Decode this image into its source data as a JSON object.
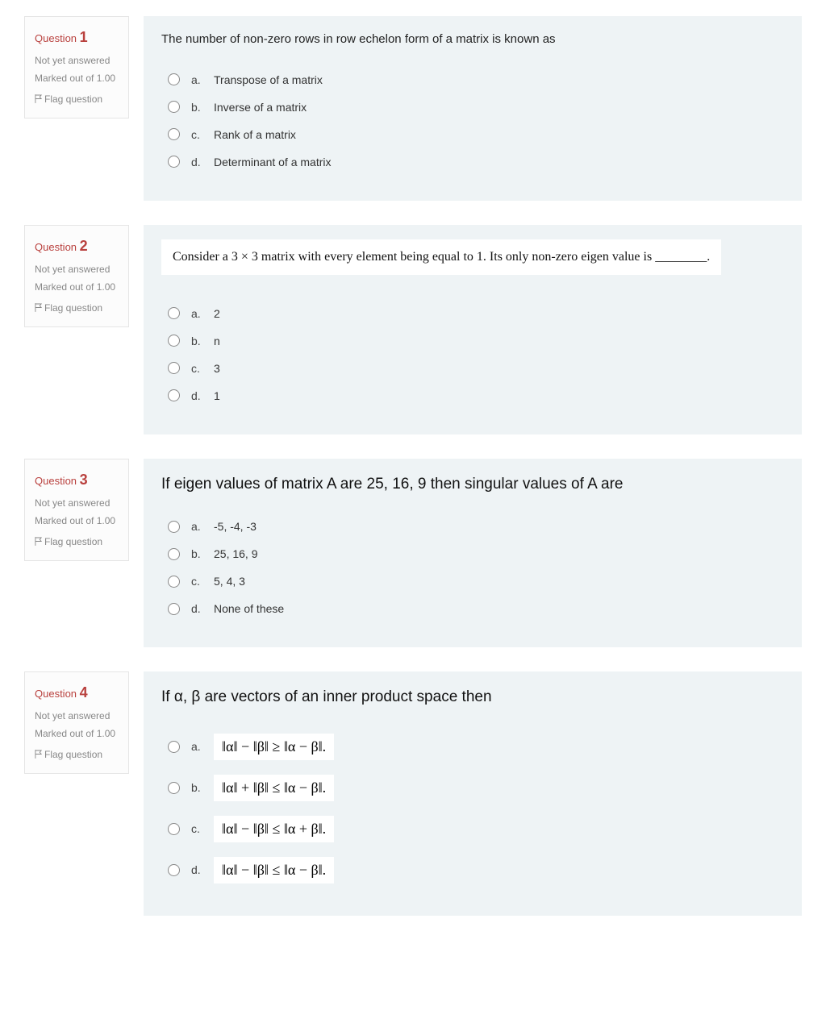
{
  "questions": [
    {
      "label": "Question",
      "number": "1",
      "status": "Not yet answered",
      "marks": "Marked out of 1.00",
      "flag": "Flag question",
      "text": "The number of non-zero rows in row echelon form of a matrix is known as",
      "text_class": "",
      "options": [
        {
          "letter": "a.",
          "text": "Transpose of a matrix",
          "formula": false
        },
        {
          "letter": "b.",
          "text": "Inverse of a matrix",
          "formula": false
        },
        {
          "letter": "c.",
          "text": "Rank of a matrix",
          "formula": false
        },
        {
          "letter": "d.",
          "text": "Determinant of a matrix",
          "formula": false
        }
      ]
    },
    {
      "label": "Question",
      "number": "2",
      "status": "Not yet answered",
      "marks": "Marked out of 1.00",
      "flag": "Flag question",
      "text": "Consider a 3 × 3 matrix with every element being equal to 1. Its only non-zero eigen value is ________.",
      "text_class": "white-strip",
      "options": [
        {
          "letter": "a.",
          "text": "2",
          "formula": false
        },
        {
          "letter": "b.",
          "text": "n",
          "formula": false
        },
        {
          "letter": "c.",
          "text": "3",
          "formula": false
        },
        {
          "letter": "d.",
          "text": "1",
          "formula": false
        }
      ]
    },
    {
      "label": "Question",
      "number": "3",
      "status": "Not yet answered",
      "marks": "Marked out of 1.00",
      "flag": "Flag question",
      "text": "If eigen values of matrix A are 25, 16, 9 then singular values of A are",
      "text_class": "big",
      "options": [
        {
          "letter": "a.",
          "text": "-5, -4, -3",
          "formula": false
        },
        {
          "letter": "b.",
          "text": "25, 16, 9",
          "formula": false
        },
        {
          "letter": "c.",
          "text": "5, 4, 3",
          "formula": false
        },
        {
          "letter": "d.",
          "text": "None of these",
          "formula": false
        }
      ]
    },
    {
      "label": "Question",
      "number": "4",
      "status": "Not yet answered",
      "marks": "Marked out of 1.00",
      "flag": "Flag question",
      "text": "If α, β are vectors of an inner product space then",
      "text_class": "big",
      "options": [
        {
          "letter": "a.",
          "text": "‖α‖ − ‖β‖ ≥ ‖α − β‖.",
          "formula": true
        },
        {
          "letter": "b.",
          "text": "‖α‖ + ‖β‖ ≤ ‖α − β‖.",
          "formula": true
        },
        {
          "letter": "c.",
          "text": "‖α‖ − ‖β‖ ≤ ‖α + β‖.",
          "formula": true
        },
        {
          "letter": "d.",
          "text": "‖α‖ − ‖β‖ ≤ ‖α − β‖.",
          "formula": true
        }
      ]
    }
  ]
}
